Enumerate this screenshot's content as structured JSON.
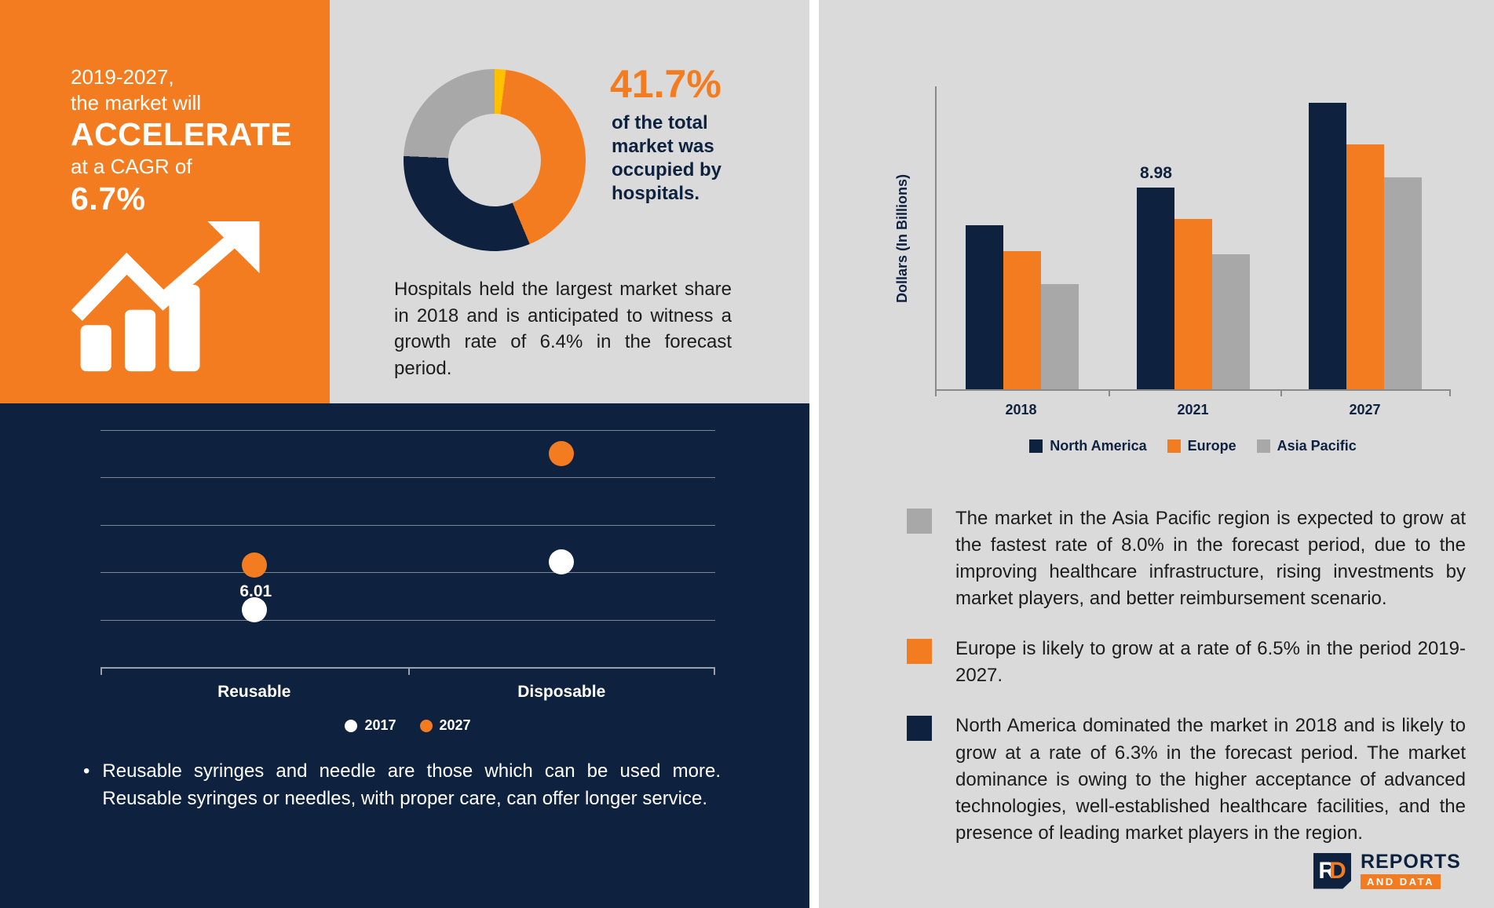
{
  "cagr_panel": {
    "line1": "2019-2027,",
    "line2": "the market will",
    "line3": "ACCELERATE",
    "line4": "at a CAGR of",
    "line5": "6.7%"
  },
  "hospital_panel": {
    "stat": "41.7%",
    "stat_caption": "of the total market was occupied by hospitals.",
    "body": "Hospitals held the largest market share in 2018 and is anticipated to witness a growth rate of 6.4% in the forecast period."
  },
  "product_panel": {
    "bullet": "Reusable syringes and needle are those which can be used more. Reusable syringes or needles, with proper care, can offer longer service."
  },
  "region_panel": {
    "bullets": [
      {
        "color": "#a8a8a8",
        "text": "The market in the Asia Pacific region is expected to grow at the fastest rate of 8.0% in the forecast period, due to the improving healthcare infrastructure, rising investments by market players, and better reimbursement scenario."
      },
      {
        "color": "#f47c20",
        "text": "Europe is likely to grow at a rate of 6.5% in the period 2019-2027."
      },
      {
        "color": "#0e2240",
        "text": "North America dominated the market in 2018 and is likely to grow at a rate of 6.3% in the forecast period. The market dominance is owing to the higher acceptance of advanced technologies, well-established healthcare facilities, and the presence of leading market players in the region."
      }
    ]
  },
  "logo": {
    "mark_r": "R",
    "mark_d": "D",
    "name_top": "REPORTS",
    "name_bottom": "AND DATA"
  },
  "colors": {
    "orange": "#f47c20",
    "navy": "#0e2240",
    "panel_gray": "#dadada",
    "bar_gray": "#a8a8a8",
    "yellow": "#ffc000",
    "white": "#ffffff"
  },
  "chart_data": [
    {
      "type": "pie",
      "subtype": "donut",
      "slices": [
        {
          "label": "unlabeled (yellow)",
          "value": 2.0,
          "color": "#ffc000"
        },
        {
          "label": "Hospitals",
          "value": 41.7,
          "color": "#f47c20"
        },
        {
          "label": "unlabeled (navy)",
          "value": 32.0,
          "color": "#0e2240"
        },
        {
          "label": "unlabeled (gray)",
          "value": 24.3,
          "color": "#a8a8a8"
        }
      ],
      "annotation": "41.7% of the total market was occupied by hospitals."
    },
    {
      "type": "bar",
      "categories": [
        "2018",
        "2021",
        "2027"
      ],
      "series": [
        {
          "name": "North America",
          "color": "#0e2240",
          "values": [
            7.3,
            8.98,
            12.75
          ]
        },
        {
          "name": "Europe",
          "color": "#f47c20",
          "values": [
            6.15,
            7.6,
            10.9
          ]
        },
        {
          "name": "Asia Pacific",
          "color": "#a8a8a8",
          "values": [
            4.7,
            6.0,
            9.45
          ]
        }
      ],
      "ylabel": "Dollars (In Billions)",
      "ylim": [
        0,
        13.5
      ],
      "bar_labels": [
        {
          "series": "North America",
          "category": "2021",
          "text": "8.98"
        }
      ],
      "grid": false,
      "legend_position": "bottom"
    },
    {
      "type": "scatter",
      "subtype": "dot",
      "categories": [
        "Reusable",
        "Disposable"
      ],
      "series": [
        {
          "name": "2017",
          "color": "#ffffff",
          "values": [
            3.4,
            6.2
          ]
        },
        {
          "name": "2027",
          "color": "#f47c20",
          "values": [
            6.01,
            12.6
          ]
        }
      ],
      "ylim": [
        0,
        14
      ],
      "point_labels": [
        {
          "series": "2027",
          "category": "Reusable",
          "text": "6.01"
        }
      ],
      "grid": true,
      "legend_position": "bottom"
    }
  ]
}
